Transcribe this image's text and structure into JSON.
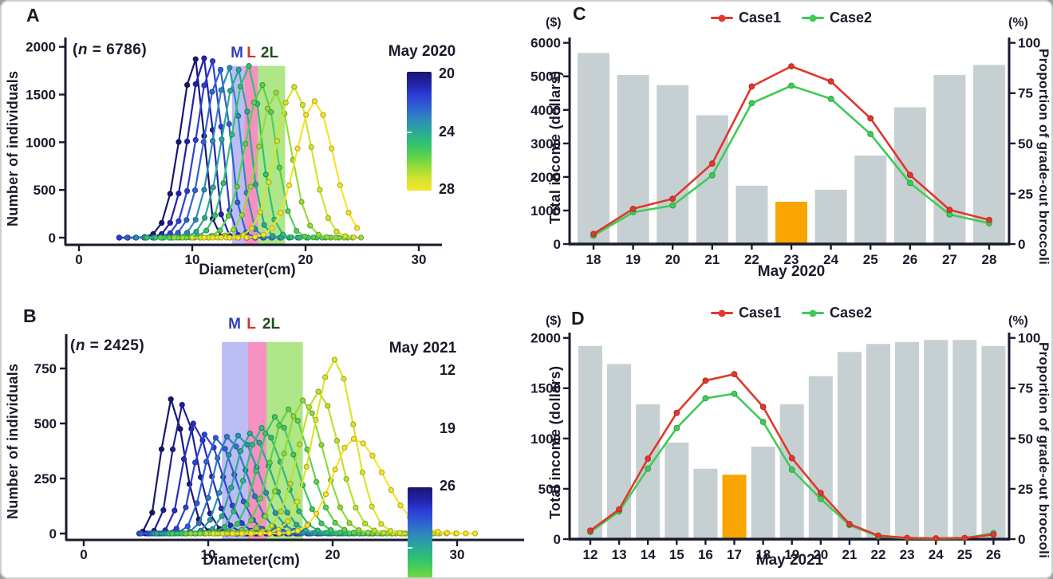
{
  "colors": {
    "bar_gray": "#c6cfd1",
    "bar_highlight": "#f9a400",
    "case1_red": "#e0382b",
    "case2_green": "#3ecb57",
    "axis": "#1a1a2e",
    "text": "#1a1a2b",
    "curve_stops": [
      "#17176e",
      "#2222a8",
      "#2c3ed6",
      "#2f62d2",
      "#2e8abc",
      "#2ba898",
      "#30c172",
      "#55d14e",
      "#96dc38",
      "#d3e42e",
      "#f8e32a"
    ]
  },
  "chart_data": [
    {
      "id": "A",
      "type": "line",
      "panel_letter": "A",
      "n_label": {
        "open": "(",
        "var": "n",
        "rest": " = 6786)"
      },
      "ylabel": "Number of individuals",
      "xlabel": "Diameter(cm)",
      "xticks": [
        0,
        10,
        20,
        30
      ],
      "yticks": [
        0,
        500,
        1000,
        1500,
        2000
      ],
      "xlim": [
        0,
        31
      ],
      "ylim": [
        0,
        2100
      ],
      "colorbar": {
        "title": "May 2020",
        "tick_labels": [
          "20",
          "24",
          "28"
        ]
      },
      "grade_bands": [
        {
          "label": "M",
          "x_from": 13.5,
          "x_to": 14.6,
          "fill": "rgba(150,152,236,0.65)",
          "label_color": "#2d3fc0"
        },
        {
          "label": "L",
          "x_from": 14.6,
          "x_to": 15.8,
          "fill": "rgba(242,108,172,0.75)",
          "label_color": "#d93025"
        },
        {
          "label": "2L",
          "x_from": 15.8,
          "x_to": 18.2,
          "fill": "rgba(140,219,85,0.70)",
          "label_color": "#1c4f1c"
        }
      ],
      "band_top": 1800,
      "curves": [
        {
          "date": 18,
          "mu": 10.3,
          "peak": 1870,
          "sl": 1.9,
          "sr": 1.0
        },
        {
          "date": 19,
          "mu": 11.05,
          "peak": 1880,
          "sl": 1.9,
          "sr": 1.05
        },
        {
          "date": 20,
          "mu": 11.8,
          "peak": 1850,
          "sl": 1.95,
          "sr": 1.1
        },
        {
          "date": 21,
          "mu": 12.5,
          "peak": 1760,
          "sl": 2.0,
          "sr": 1.2
        },
        {
          "date": 22,
          "mu": 13.3,
          "peak": 1780,
          "sl": 2.0,
          "sr": 1.3
        },
        {
          "date": 23,
          "mu": 14.1,
          "peak": 1760,
          "sl": 2.05,
          "sr": 1.4
        },
        {
          "date": 24,
          "mu": 15.0,
          "peak": 1800,
          "sl": 2.1,
          "sr": 1.5
        },
        {
          "date": 25,
          "mu": 16.2,
          "peak": 1600,
          "sl": 2.15,
          "sr": 1.7
        },
        {
          "date": 26,
          "mu": 17.4,
          "peak": 1520,
          "sl": 2.2,
          "sr": 1.9
        },
        {
          "date": 27,
          "mu": 19.0,
          "peak": 1580,
          "sl": 2.25,
          "sr": 2.1
        },
        {
          "date": 28,
          "mu": 20.8,
          "peak": 1430,
          "sl": 2.3,
          "sr": 2.3
        }
      ]
    },
    {
      "id": "B",
      "type": "line",
      "panel_letter": "B",
      "n_label": {
        "open": "(",
        "var": "n",
        "rest": " = 2425)"
      },
      "ylabel": "Number of individuals",
      "xlabel": "Diameter(cm)",
      "xticks": [
        0,
        10,
        20,
        30
      ],
      "yticks": [
        0,
        250,
        500,
        750
      ],
      "xlim": [
        0,
        33
      ],
      "ylim": [
        0,
        900
      ],
      "colorbar": {
        "title": "May 2021",
        "tick_labels": [
          "12",
          "19",
          "26"
        ]
      },
      "grade_bands": [
        {
          "label": "M",
          "x_from": 11.1,
          "x_to": 13.2,
          "fill": "rgba(150,152,236,0.65)",
          "label_color": "#2d3fc0"
        },
        {
          "label": "L",
          "x_from": 13.2,
          "x_to": 14.7,
          "fill": "rgba(242,108,172,0.75)",
          "label_color": "#d93025"
        },
        {
          "label": "2L",
          "x_from": 14.7,
          "x_to": 17.6,
          "fill": "rgba(140,219,85,0.70)",
          "label_color": "#1c4f1c"
        }
      ],
      "band_top": 870,
      "curves": [
        {
          "date": 12,
          "mu": 7.0,
          "peak": 610,
          "sl": 1.1,
          "sr": 1.5
        },
        {
          "date": 13,
          "mu": 7.9,
          "peak": 585,
          "sl": 1.15,
          "sr": 1.65
        },
        {
          "date": 14,
          "mu": 8.8,
          "peak": 500,
          "sl": 1.2,
          "sr": 1.85
        },
        {
          "date": 15,
          "mu": 9.7,
          "peak": 450,
          "sl": 1.3,
          "sr": 2.0
        },
        {
          "date": 16,
          "mu": 10.6,
          "peak": 435,
          "sl": 1.4,
          "sr": 2.15
        },
        {
          "date": 17,
          "mu": 11.5,
          "peak": 440,
          "sl": 1.5,
          "sr": 2.3
        },
        {
          "date": 18,
          "mu": 12.4,
          "peak": 445,
          "sl": 1.6,
          "sr": 2.4
        },
        {
          "date": 19,
          "mu": 13.35,
          "peak": 455,
          "sl": 1.7,
          "sr": 2.4
        },
        {
          "date": 20,
          "mu": 14.3,
          "peak": 480,
          "sl": 1.8,
          "sr": 2.4
        },
        {
          "date": 21,
          "mu": 15.35,
          "peak": 530,
          "sl": 1.9,
          "sr": 2.4
        },
        {
          "date": 22,
          "mu": 16.45,
          "peak": 565,
          "sl": 2.0,
          "sr": 2.4
        },
        {
          "date": 23,
          "mu": 17.6,
          "peak": 605,
          "sl": 2.1,
          "sr": 2.35
        },
        {
          "date": 24,
          "mu": 18.85,
          "peak": 645,
          "sl": 2.2,
          "sr": 2.3
        },
        {
          "date": 25,
          "mu": 20.15,
          "peak": 790,
          "sl": 2.3,
          "sr": 2.2
        },
        {
          "date": 26,
          "mu": 21.7,
          "peak": 430,
          "sl": 2.4,
          "sr": 3.4
        }
      ]
    },
    {
      "id": "C",
      "type": "bar+line",
      "panel_letter": "C",
      "unit_left": "($)",
      "unit_right": "(%)",
      "xlabel": "May 2020",
      "ylabel_left": "Total income (dollars)",
      "ylabel_right": "Proportion of grade-out broccoli",
      "categories": [
        18,
        19,
        20,
        21,
        22,
        23,
        24,
        25,
        26,
        27,
        28
      ],
      "left_ticks": [
        0,
        1000,
        2000,
        3000,
        4000,
        5000,
        6000
      ],
      "right_ticks": [
        0,
        25,
        50,
        75,
        100
      ],
      "left_ylim": [
        0,
        6000
      ],
      "right_ylim": [
        0,
        100
      ],
      "bars_pct": [
        95,
        84,
        79,
        64,
        29,
        21,
        27,
        44,
        68,
        84,
        89
      ],
      "highlight_category": 23,
      "series": [
        {
          "name": "Case1",
          "color": "#e0382b",
          "values": [
            300,
            1050,
            1350,
            2400,
            4700,
            5300,
            4850,
            3750,
            2060,
            1020,
            720
          ]
        },
        {
          "name": "Case2",
          "color": "#3ecb57",
          "values": [
            250,
            950,
            1150,
            2050,
            4200,
            4720,
            4330,
            3280,
            1820,
            880,
            620
          ]
        }
      ]
    },
    {
      "id": "D",
      "type": "bar+line",
      "panel_letter": "D",
      "unit_left": "($)",
      "unit_right": "(%)",
      "xlabel": "May 2021",
      "ylabel_left": "Total income (dollars)",
      "ylabel_right": "Proportion of grade-out broccoli",
      "categories": [
        12,
        13,
        14,
        15,
        16,
        17,
        18,
        19,
        20,
        21,
        22,
        23,
        24,
        25,
        26
      ],
      "left_ticks": [
        0,
        500,
        1000,
        1500,
        2000
      ],
      "right_ticks": [
        0,
        25,
        50,
        75,
        100
      ],
      "left_ylim": [
        0,
        2000
      ],
      "right_ylim": [
        0,
        100
      ],
      "bars_pct": [
        96,
        87,
        67,
        48,
        35,
        32,
        46,
        67,
        81,
        93,
        97,
        98,
        99,
        99,
        96
      ],
      "highlight_category": 17,
      "series": [
        {
          "name": "Case1",
          "color": "#e0382b",
          "values": [
            85,
            295,
            800,
            1255,
            1575,
            1640,
            1315,
            805,
            460,
            150,
            35,
            12,
            8,
            12,
            45
          ]
        },
        {
          "name": "Case2",
          "color": "#3ecb57",
          "values": [
            70,
            275,
            700,
            1105,
            1400,
            1445,
            1165,
            690,
            400,
            140,
            28,
            8,
            5,
            8,
            60
          ]
        }
      ]
    }
  ]
}
